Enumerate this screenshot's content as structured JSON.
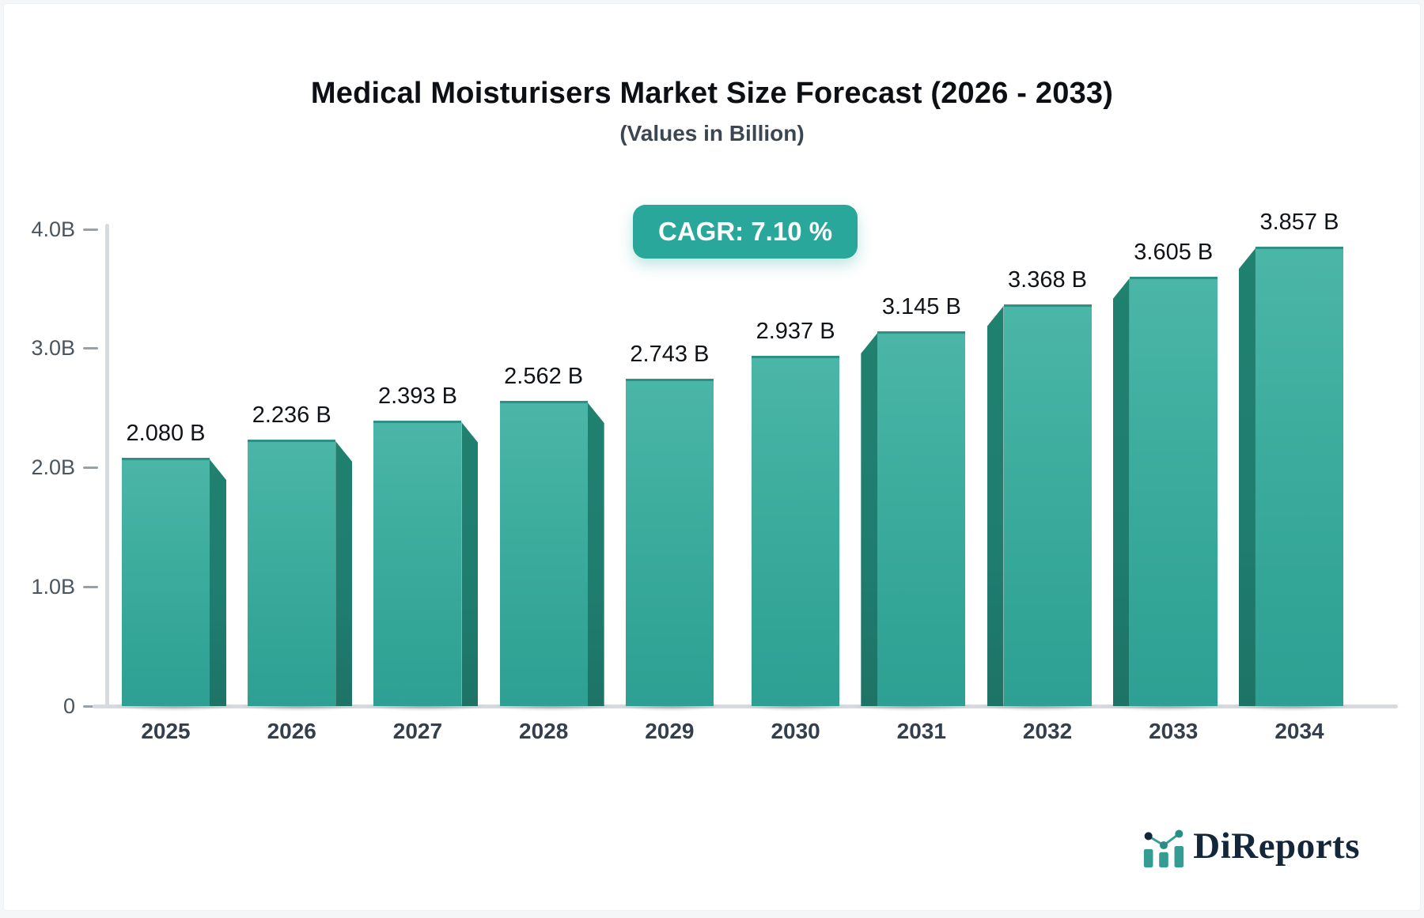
{
  "page": {
    "background": "#f4f6f8",
    "card_background": "#ffffff"
  },
  "header": {
    "title": "Medical Moisturisers Market Size Forecast (2026 - 2033)",
    "subtitle": "(Values in Billion)"
  },
  "badge": {
    "label": "CAGR: 7.10 %",
    "background": "#2aa79b",
    "text_color": "#ffffff"
  },
  "chart_data": {
    "type": "bar",
    "title": "Medical Moisturisers Market Size Forecast (2026 - 2033)",
    "subtitle": "(Values in Billion)",
    "cagr": "7.10 %",
    "categories": [
      "2025",
      "2026",
      "2027",
      "2028",
      "2029",
      "2030",
      "2031",
      "2032",
      "2033",
      "2034"
    ],
    "values": [
      2.08,
      2.236,
      2.393,
      2.562,
      2.743,
      2.937,
      3.145,
      3.368,
      3.605,
      3.857
    ],
    "value_labels": [
      "2.080 B",
      "2.236 B",
      "2.393 B",
      "2.562 B",
      "2.743 B",
      "2.937 B",
      "3.145 B",
      "3.368 B",
      "3.605 B",
      "3.857 B"
    ],
    "unit": "B",
    "xlabel": "",
    "ylabel": "",
    "ylim": [
      0,
      4
    ],
    "y_ticks": [
      {
        "label": "4.0B",
        "value": 4
      },
      {
        "label": "3.0B",
        "value": 3
      },
      {
        "label": "2.0B",
        "value": 2
      },
      {
        "label": "1.0B",
        "value": 1
      },
      {
        "label": "0",
        "value": 0
      }
    ],
    "grid": false,
    "legend": false,
    "bar_style": {
      "face_top": "#4bb6a8",
      "face_bottom": "#2da093",
      "side": "#1f7d70",
      "top_edge": "#2b9185"
    }
  },
  "axis": {
    "line_color": "#d7dbe0",
    "tick_color": "#98a1aa",
    "y_label_color": "#4a5560",
    "x_label_color": "#333f4c"
  },
  "logo": {
    "text": "DiReports",
    "icon": "mini-bar-chart-trend-icon",
    "text_color": "#14263a",
    "accent": "#349c92"
  }
}
